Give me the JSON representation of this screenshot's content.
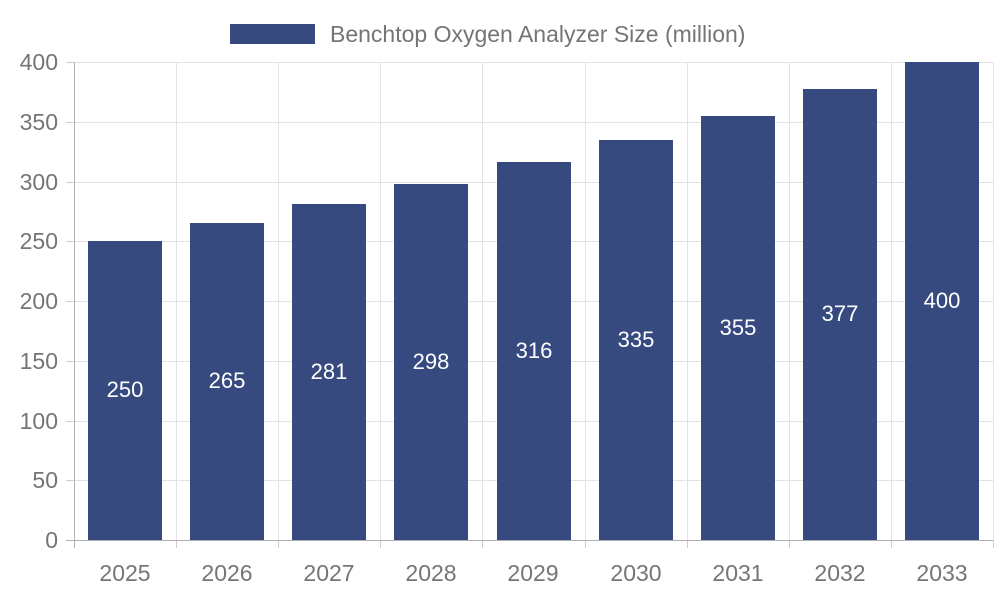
{
  "chart_data": {
    "type": "bar",
    "title": "Benchtop Oxygen Analyzer Size (million)",
    "legend_label": "Benchtop Oxygen Analyzer Size (million)",
    "legend_position": "top",
    "categories": [
      "2025",
      "2026",
      "2027",
      "2028",
      "2029",
      "2030",
      "2031",
      "2032",
      "2033"
    ],
    "values": [
      250,
      265,
      281,
      298,
      316,
      335,
      355,
      377,
      400
    ],
    "value_labels": [
      "250",
      "265",
      "281",
      "298",
      "316",
      "335",
      "355",
      "377",
      "400"
    ],
    "value_label_position": "center-of-bar",
    "xlabel": "",
    "ylabel": "",
    "ylim": [
      0,
      400
    ],
    "ytick_step": 50,
    "ytick_labels": [
      "0",
      "50",
      "100",
      "150",
      "200",
      "250",
      "300",
      "350",
      "400"
    ],
    "grid": "on",
    "colors": {
      "bar_fill": "#374a80",
      "value_label_text": "#ffffff",
      "tick_label_text": "#757575",
      "legend_text": "#757575",
      "gridline": "#e3e3e3",
      "axis_line": "#b1b1b1",
      "background": "#ffffff"
    }
  }
}
